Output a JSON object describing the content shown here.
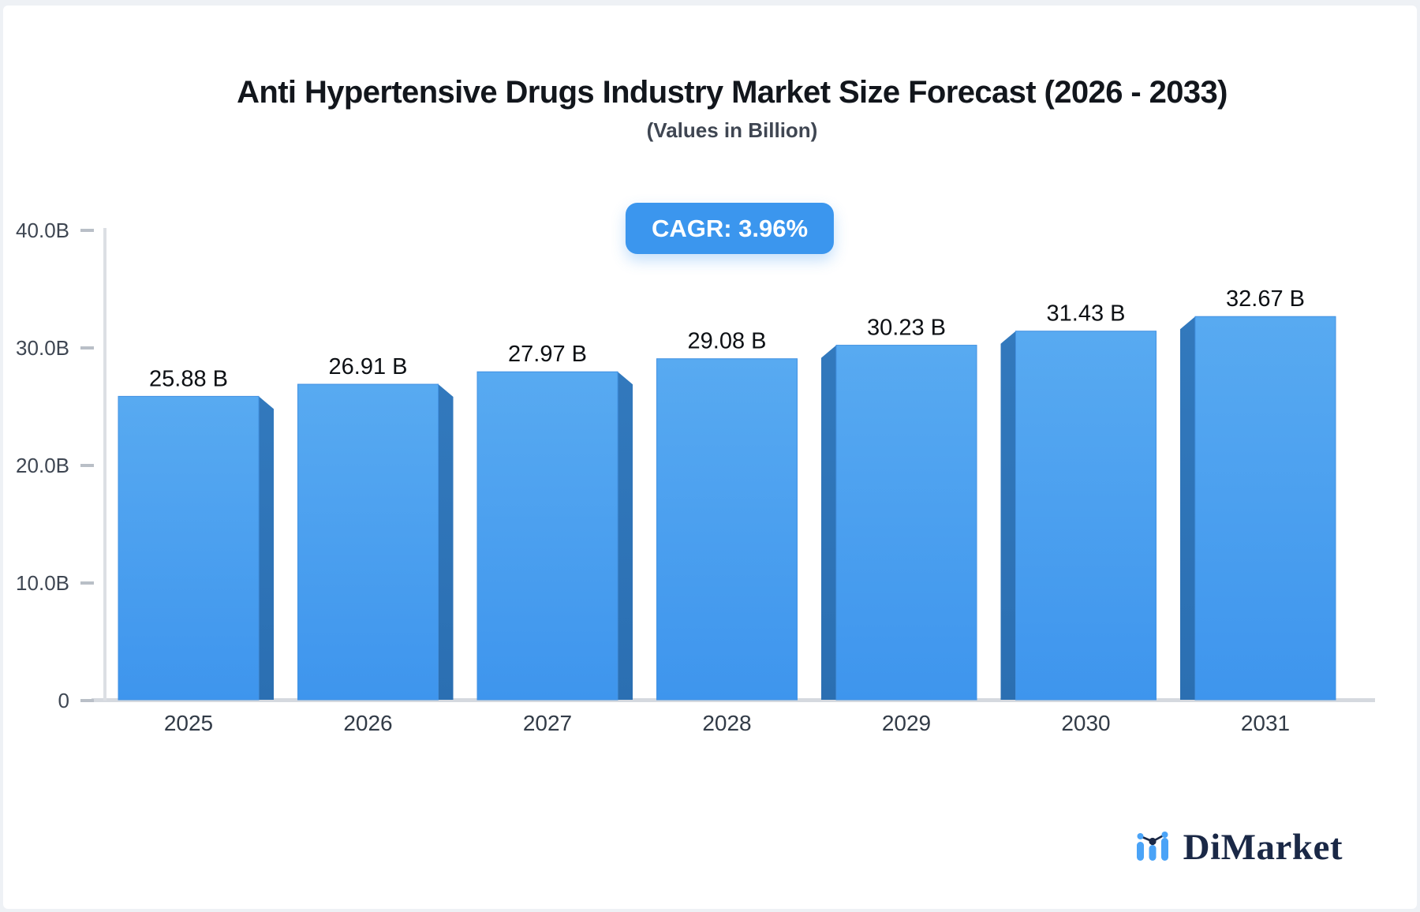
{
  "page": {
    "background": "#eef1f5",
    "card_background": "#ffffff"
  },
  "header": {
    "title": "Anti Hypertensive Drugs Industry Market Size Forecast (2026 - 2033)",
    "subtitle": "(Values in Billion)"
  },
  "cagr_badge": {
    "label": "CAGR: 3.96%",
    "background": "#3b96ee",
    "text_color": "#ffffff"
  },
  "logo": {
    "name": "DiMarket",
    "icon": "mini-bar-line-chart-icon",
    "text_color": "#1a2846",
    "icon_bar_color": "#4aa3f7",
    "icon_dot_color": "#1a2846"
  },
  "chart_data": {
    "type": "bar",
    "title": "Anti Hypertensive Drugs Industry Market Size Forecast (2026 - 2033)",
    "subtitle": "(Values in Billion)",
    "annotation": "CAGR: 3.96%",
    "categories": [
      "2025",
      "2026",
      "2027",
      "2028",
      "2029",
      "2030",
      "2031"
    ],
    "values": [
      25.88,
      26.91,
      27.97,
      29.08,
      30.23,
      31.43,
      32.67
    ],
    "value_labels": [
      "25.88 B",
      "26.91 B",
      "27.97 B",
      "29.08 B",
      "30.23 B",
      "31.43 B",
      "32.67 B"
    ],
    "ylim": [
      0,
      40
    ],
    "yticks": {
      "values": [
        0,
        10,
        20,
        30,
        40
      ],
      "labels": [
        "0",
        "10.0B",
        "20.0B",
        "30.0B",
        "40.0B"
      ]
    },
    "grid": false,
    "legend": false,
    "style_3d": true,
    "colors": {
      "bar_top": "#58aaf1",
      "bar_bottom": "#3e95ed",
      "bar_edge": "#4392e2",
      "bar_side": "#2e74b8",
      "axis_line": "#dcdfe4",
      "baseline": "#d5d9df",
      "tick_mark": "#b9bfc7",
      "tick_label": "#3e4652",
      "category_label": "#323b47",
      "value_label": "#0d1014"
    }
  }
}
